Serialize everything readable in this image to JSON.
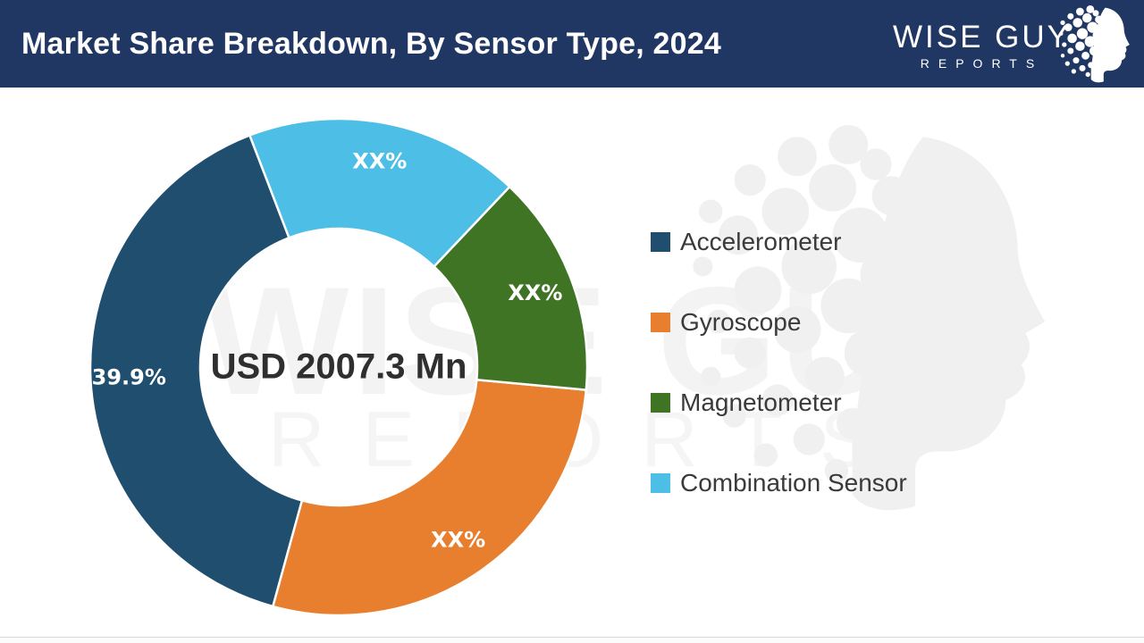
{
  "header": {
    "title": "Market Share Breakdown, By Sensor Type, 2024",
    "logo": {
      "line1": "WISE GUY",
      "line2": "REPORTS"
    }
  },
  "watermark": {
    "line1": "WISE GUY",
    "line2": "REPORTS"
  },
  "chart_data": {
    "type": "donut",
    "title": "Market Share Breakdown, By Sensor Type, 2024",
    "center_label": "USD 2007.3 Mn",
    "start_angle_deg": 111,
    "direction": "counterclockwise",
    "legend_position": "right",
    "segments": [
      {
        "name": "Accelerometer",
        "value": 39.9,
        "label": "39.9%",
        "color": "#1F4E6F"
      },
      {
        "name": "Gyroscope",
        "value": 27.8,
        "label": "XX%",
        "color": "#E87F2E"
      },
      {
        "name": "Magnetometer",
        "value": 14.4,
        "label": "XX%",
        "color": "#3E7424"
      },
      {
        "name": "Combination Sensor",
        "value": 17.9,
        "label": "XX%",
        "color": "#4DBEE6"
      }
    ]
  },
  "colors": {
    "header_bg": "#203764",
    "slice_label_text": "#FFFFFF",
    "center_text": "#2F2F2F",
    "legend_text": "#3A3A3A",
    "watermark": "#F3F3F3"
  }
}
